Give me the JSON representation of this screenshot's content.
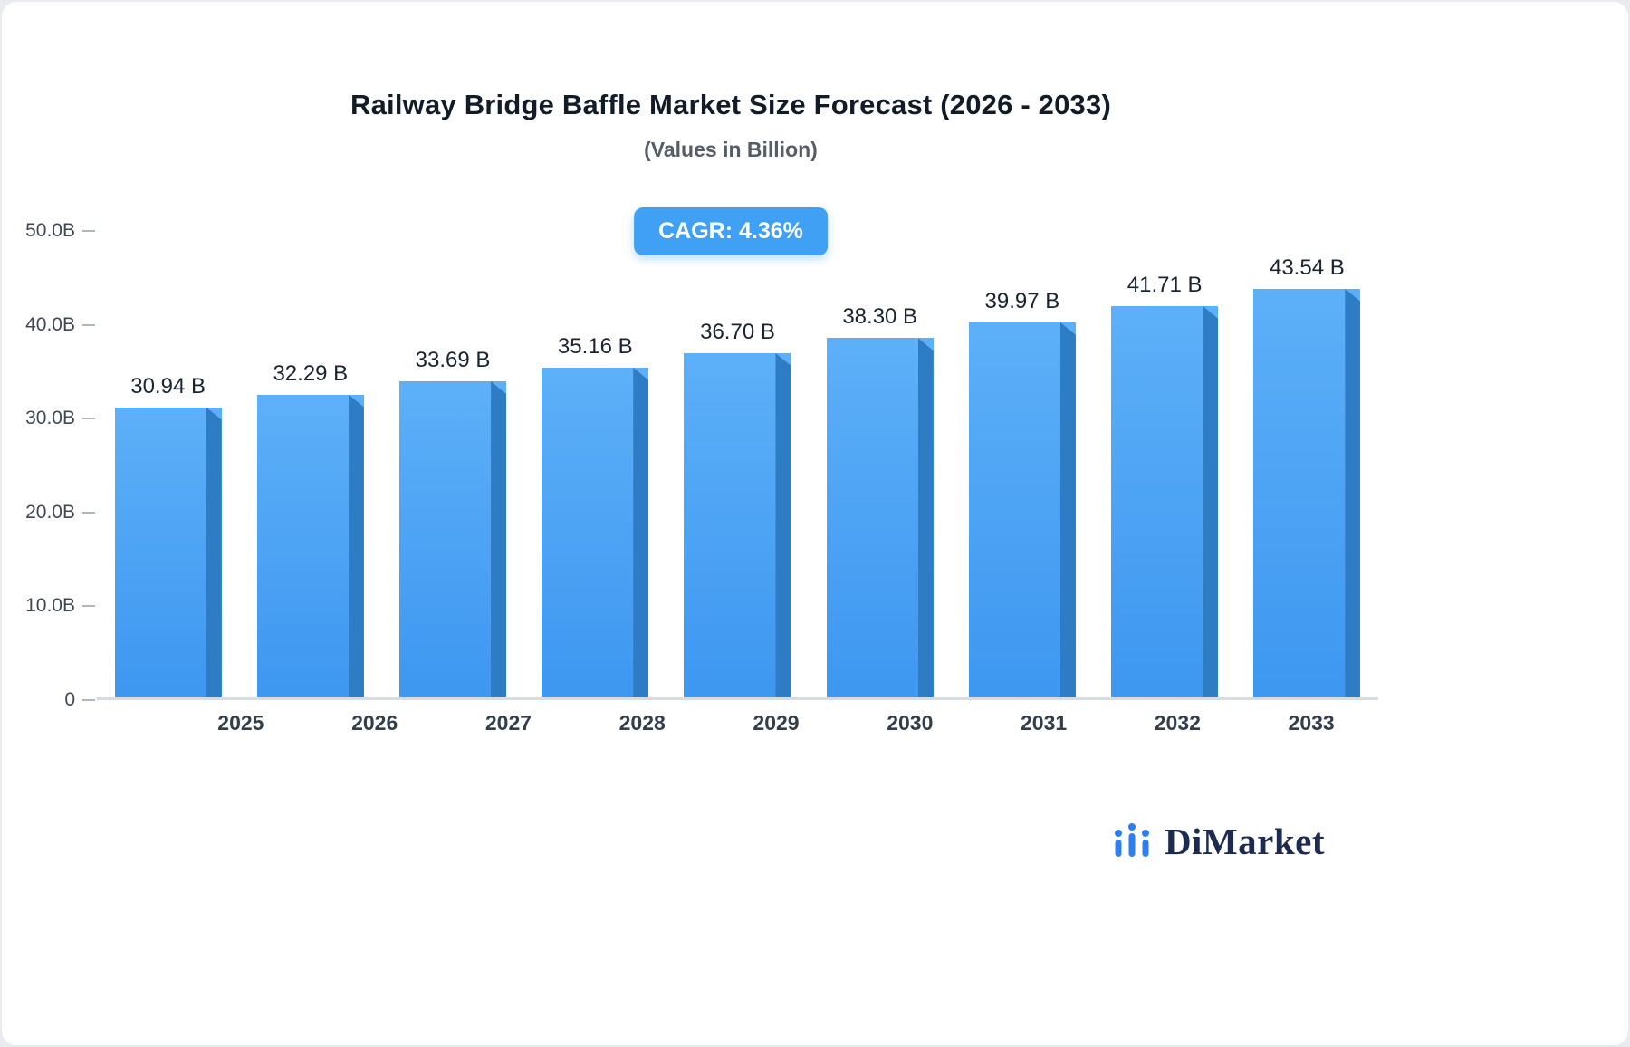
{
  "chart_data": {
    "type": "bar",
    "title": "Railway Bridge Baffle Market Size Forecast (2026 - 2033)",
    "subtitle": "(Values in Billion)",
    "annotations": [
      "CAGR: 4.36%"
    ],
    "categories": [
      "2025",
      "2026",
      "2027",
      "2028",
      "2029",
      "2030",
      "2031",
      "2032",
      "2033"
    ],
    "values": [
      30.94,
      32.29,
      33.69,
      35.16,
      36.7,
      38.3,
      39.97,
      41.71,
      43.54
    ],
    "value_labels": [
      "30.94 B",
      "32.29 B",
      "33.69 B",
      "35.16 B",
      "36.70 B",
      "38.30 B",
      "39.97 B",
      "41.71 B",
      "43.54 B"
    ],
    "xlabel": "",
    "ylabel": "",
    "ylim": [
      0,
      50
    ],
    "yticks": [
      {
        "value": 0,
        "label": "0"
      },
      {
        "value": 10,
        "label": "10.0B"
      },
      {
        "value": 20,
        "label": "20.0B"
      },
      {
        "value": 30,
        "label": "30.0B"
      },
      {
        "value": 40,
        "label": "40.0B"
      },
      {
        "value": 50,
        "label": "50.0B"
      }
    ],
    "grid": false,
    "legend": false,
    "colors": {
      "accent": "#3fa0f4",
      "bar_top": "#5db0f8",
      "bar_bottom": "#3e97f0",
      "bar_side": "#2e7cc4"
    }
  },
  "brand": {
    "name": "DiMarket",
    "icon": "bar-chart-icon",
    "color": "#1d2b4f",
    "icon_color": "#2d7ff0"
  }
}
